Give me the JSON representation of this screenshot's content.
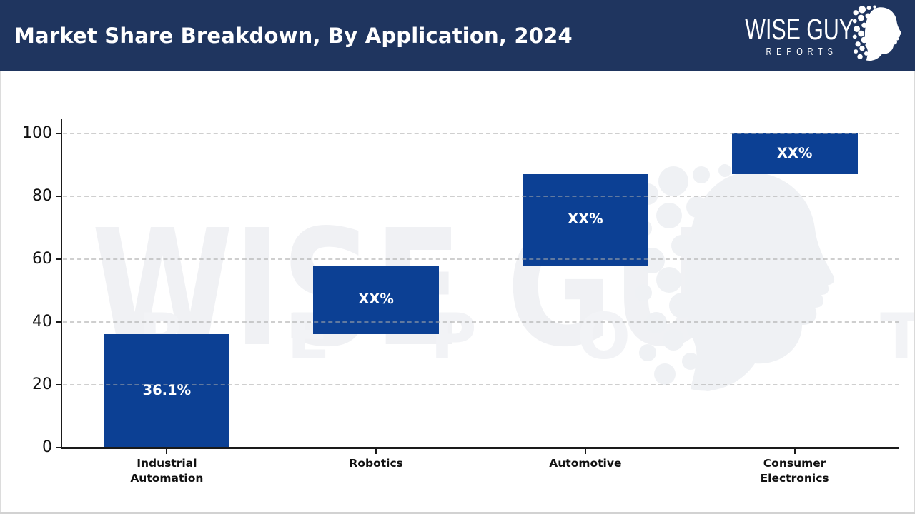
{
  "header": {
    "title": "Market Share Breakdown, By Application, 2024",
    "bg_color": "#1f355f",
    "logo": {
      "wordmark": "WISE GUY",
      "subtitle": "REPORTS"
    }
  },
  "watermark": {
    "wordmark": "WISE GUY",
    "subtitle": "R E P O R T S"
  },
  "chart_data": {
    "type": "bar",
    "variant": "waterfall",
    "title": "Market Share Breakdown, By Application, 2024",
    "categories": [
      "Industrial Automation",
      "Robotics",
      "Automotive",
      "Consumer Electronics"
    ],
    "category_label_lines": [
      [
        "Industrial",
        "Automation"
      ],
      [
        "Robotics"
      ],
      [
        "Automotive"
      ],
      [
        "Consumer",
        "Electronics"
      ]
    ],
    "segments": [
      {
        "category": "Industrial Automation",
        "start": 0,
        "end": 36.1,
        "label": "36.1%"
      },
      {
        "category": "Robotics",
        "start": 36.1,
        "end": 58,
        "label": "XX%"
      },
      {
        "category": "Automotive",
        "start": 58,
        "end": 87,
        "label": "XX%"
      },
      {
        "category": "Consumer Electronics",
        "start": 87,
        "end": 100,
        "label": "XX%"
      }
    ],
    "ylim": [
      0,
      100
    ],
    "yticks": [
      0,
      20,
      40,
      60,
      80,
      100
    ],
    "xlabel": "",
    "ylabel": "",
    "grid": "horizontal-dashed",
    "legend": "none",
    "bar_color": "#0c4094"
  }
}
